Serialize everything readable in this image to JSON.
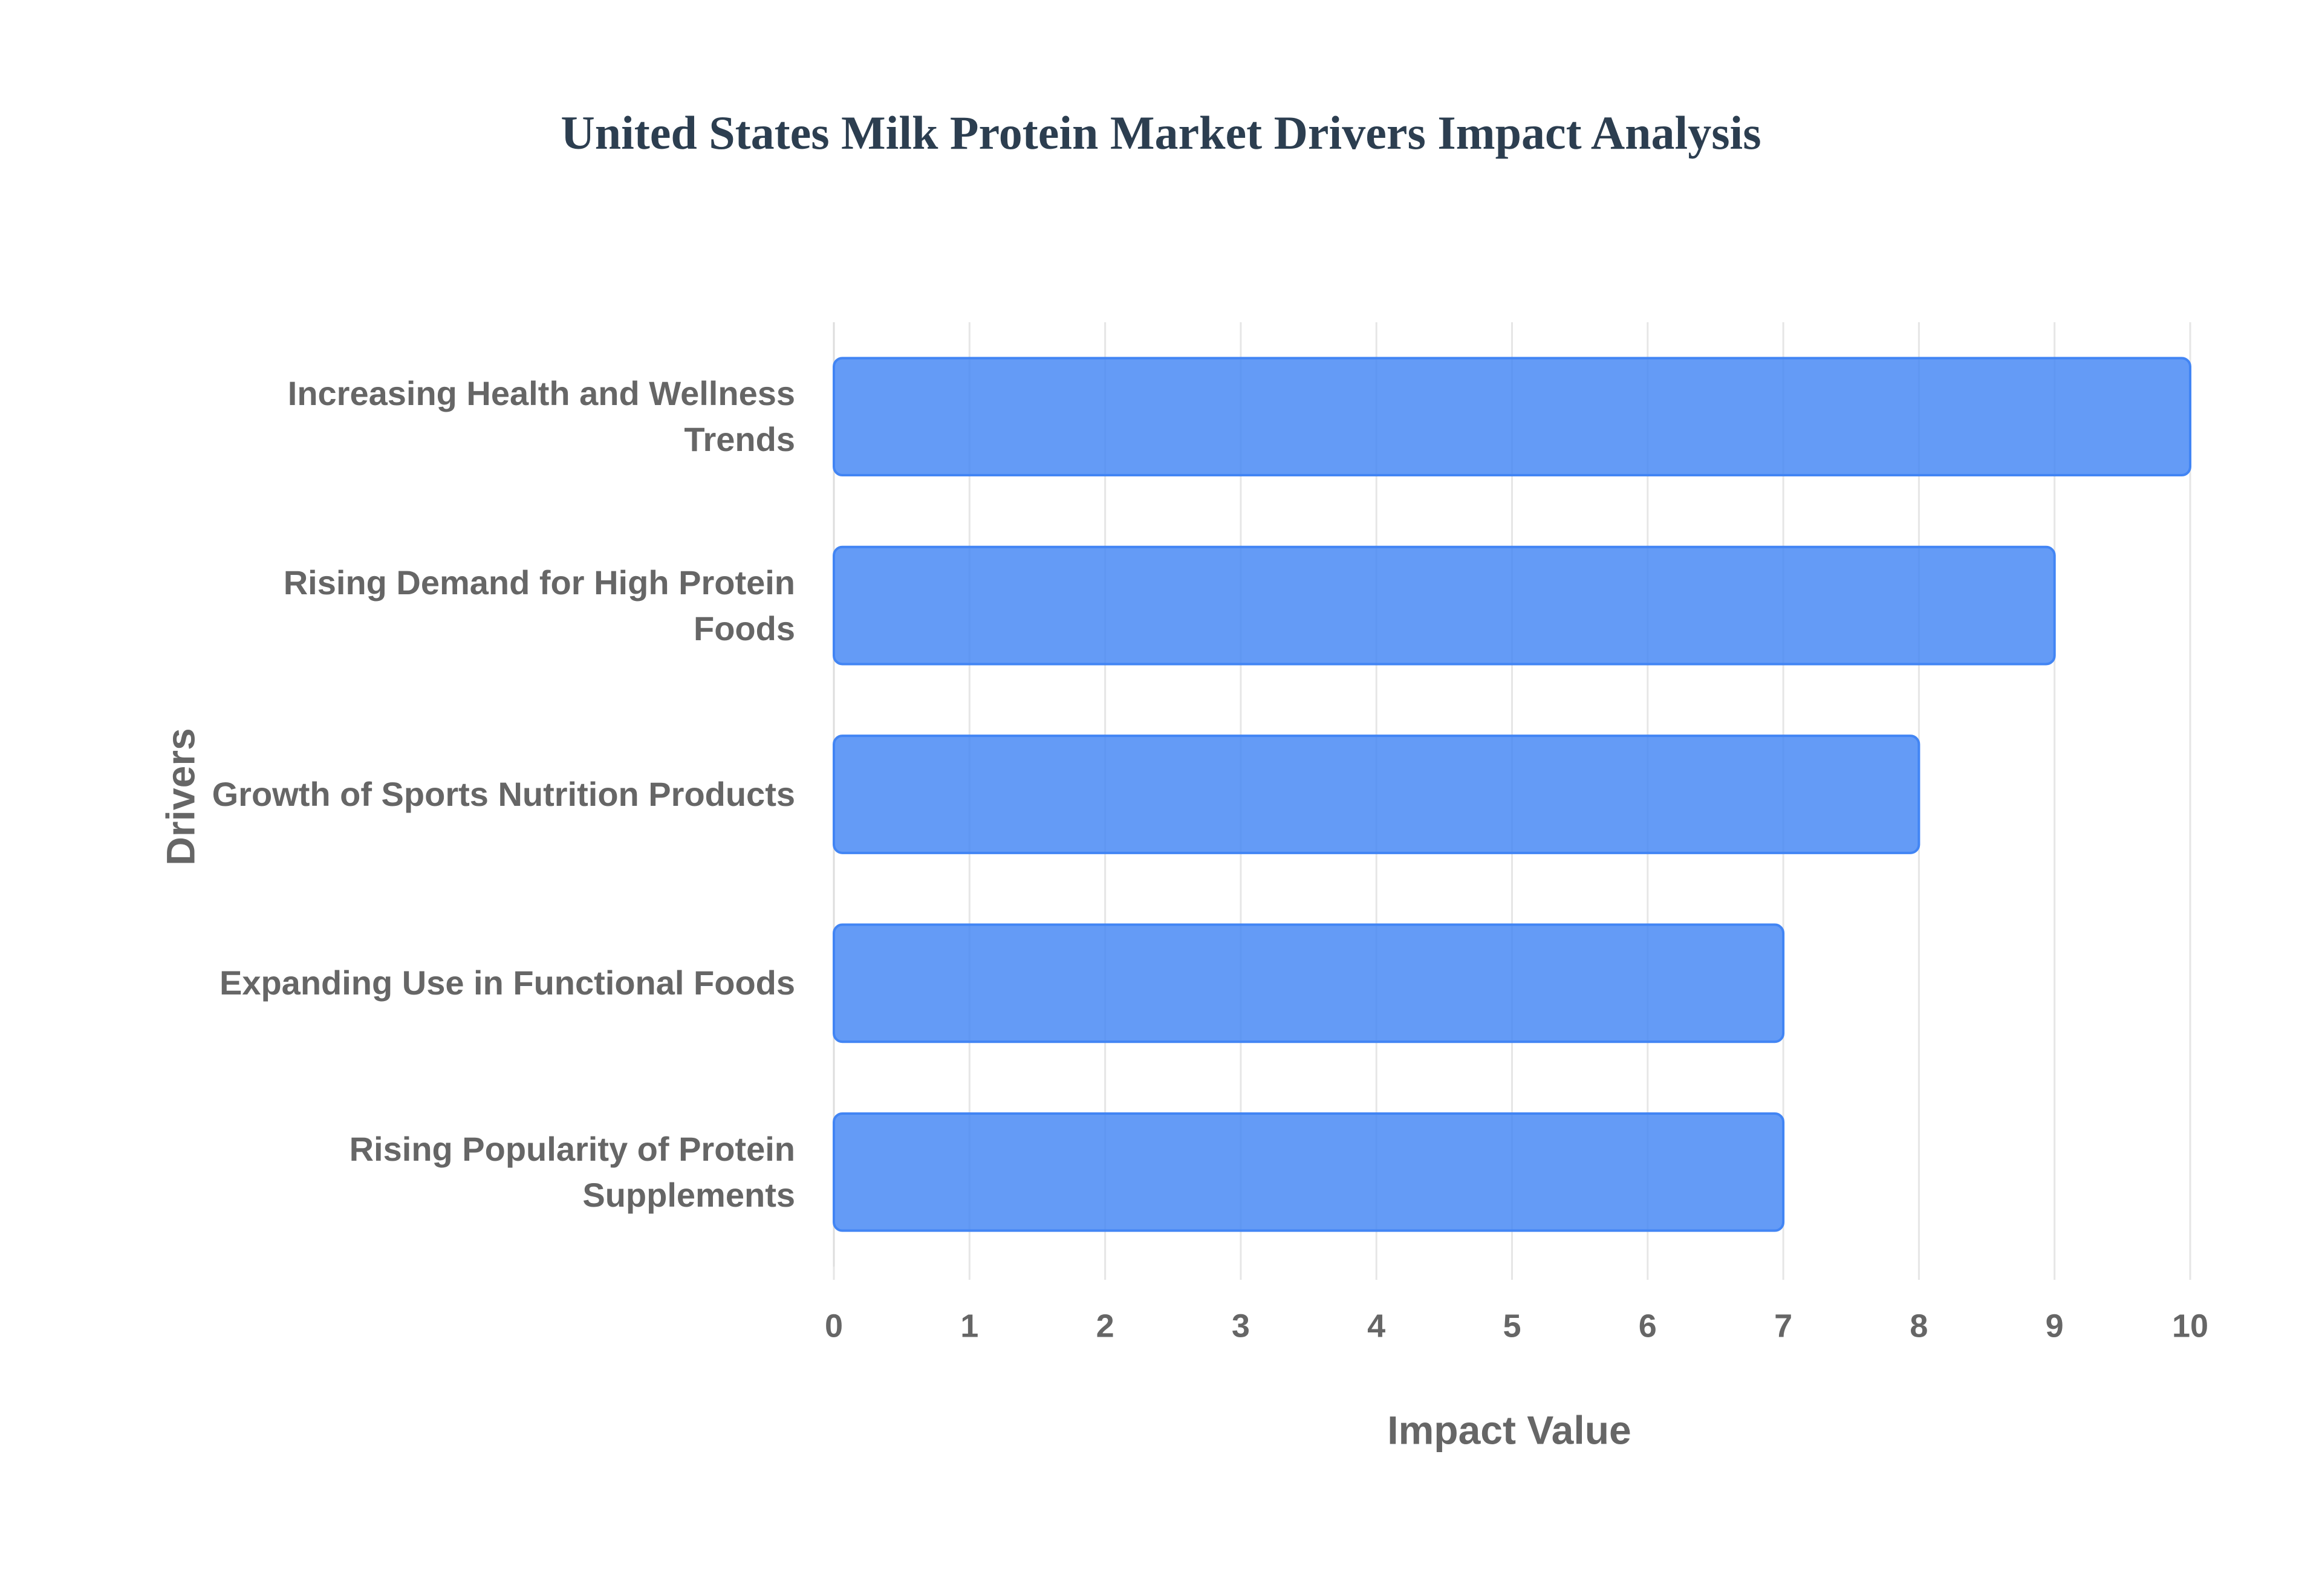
{
  "chart_data": {
    "type": "bar",
    "orientation": "horizontal",
    "title": "United States Milk Protein Market Drivers Impact Analysis",
    "x_label": "Impact Value",
    "y_label": "Drivers",
    "categories": [
      "Increasing Health and Wellness Trends",
      "Rising Demand for High Protein Foods",
      "Growth of Sports Nutrition Products",
      "Expanding Use in Functional Foods",
      "Rising Popularity of Protein Supplements"
    ],
    "values": [
      10,
      9,
      8,
      7,
      7
    ],
    "color": "#4285f4",
    "xlim": [
      0,
      10
    ],
    "xticks": [
      0,
      1,
      2,
      3,
      4,
      5,
      6,
      7,
      8,
      9,
      10
    ],
    "grid": true
  }
}
